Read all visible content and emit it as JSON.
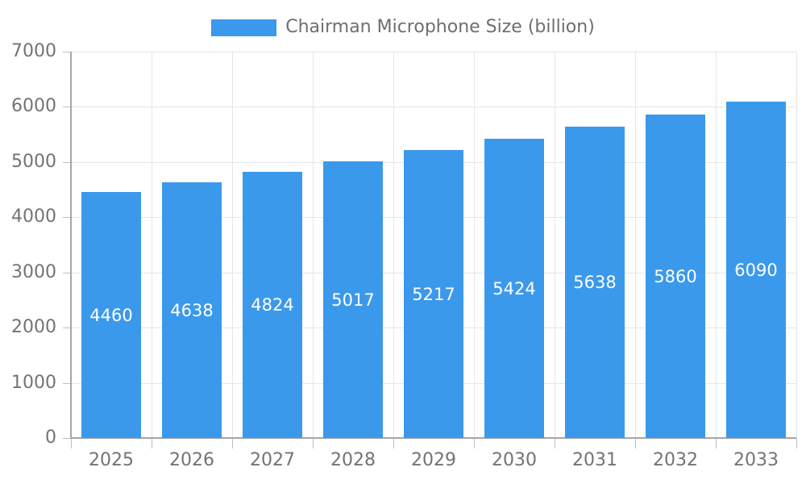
{
  "chart_data": {
    "type": "bar",
    "title": "Chairman Microphone Size (billion)",
    "categories": [
      "2025",
      "2026",
      "2027",
      "2028",
      "2029",
      "2030",
      "2031",
      "2032",
      "2033"
    ],
    "values": [
      4460,
      4638,
      4824,
      5017,
      5217,
      5424,
      5638,
      5860,
      6090
    ],
    "xlabel": "",
    "ylabel": "",
    "ylim": [
      0,
      7000
    ],
    "yticks": [
      0,
      1000,
      2000,
      3000,
      4000,
      5000,
      6000,
      7000
    ],
    "grid": true,
    "legend_position": "top",
    "bar_color": "#3B99EC",
    "value_labels_visible": true
  },
  "legend": {
    "label": "Chairman Microphone Size (billion)",
    "swatch_color": "#3B99EC"
  },
  "colors": {
    "bar": "#3B99EC",
    "grid": "#E6E6E6",
    "axis": "#A6A6A6",
    "tick": "#BFBFBF",
    "tick_label": "#737373",
    "legend_text": "#6E6E6E",
    "value_label": "#FFFFFF",
    "background": "#FFFFFF"
  }
}
